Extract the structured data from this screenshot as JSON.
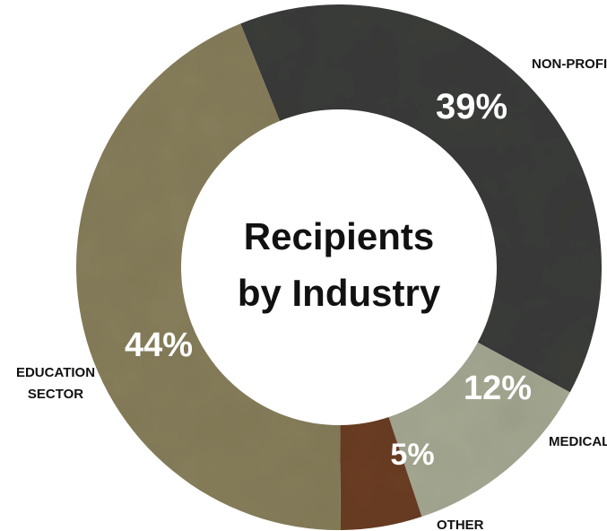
{
  "chart_data": {
    "type": "pie",
    "variant": "donut",
    "title_lines": [
      "Recipients",
      "by Industry"
    ],
    "categories": [
      "NON-PROFIT",
      "MEDICAL",
      "OTHER",
      "EDUCATION SECTOR"
    ],
    "values": [
      39,
      12,
      5,
      44
    ],
    "value_labels": [
      "39%",
      "12%",
      "5%",
      "44%"
    ],
    "category_label_lines": [
      [
        "NON-PROFIT"
      ],
      [
        "MEDICAL"
      ],
      [
        "OTHER"
      ],
      [
        "EDUCATION",
        "SECTOR"
      ]
    ],
    "colors": [
      "#3b3c3a",
      "#a6aa93",
      "#6b3e22",
      "#887f5c"
    ],
    "texture": "slate-stone",
    "legend": "none"
  }
}
